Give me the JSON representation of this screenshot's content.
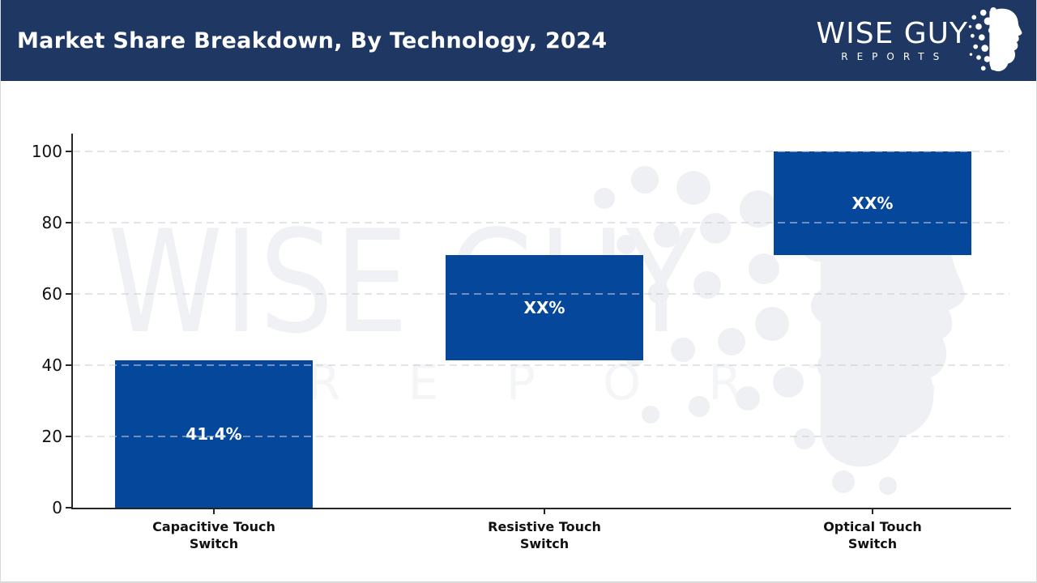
{
  "header": {
    "title": "Market Share Breakdown, By Technology, 2024",
    "logo": {
      "line1": "WISE GUY",
      "line2": "REPORTS"
    }
  },
  "watermark": {
    "line1": "WISE GUY",
    "line2": "R E P O R T S"
  },
  "colors": {
    "header_bg": "#1f3863",
    "bar": "#05489b",
    "bar_label": "#ffffff",
    "axis": "#262626",
    "tick_label": "#111111",
    "watermark": "#f0f1f4"
  },
  "chart_data": {
    "type": "bar",
    "subtype": "stacked-waterfall",
    "title": "Market Share Breakdown, By Technology, 2024",
    "categories": [
      "Capacitive Touch Switch",
      "Resistive Touch Switch",
      "Optical Touch Switch"
    ],
    "segments": [
      {
        "category": "Capacitive Touch Switch",
        "lines": [
          "Capacitive Touch",
          "Switch"
        ],
        "base": 0,
        "top": 41.4,
        "label": "41.4%"
      },
      {
        "category": "Resistive Touch Switch",
        "lines": [
          "Resistive Touch",
          "Switch"
        ],
        "base": 41.4,
        "top": 71,
        "label": "XX%"
      },
      {
        "category": "Optical Touch Switch",
        "lines": [
          "Optical Touch",
          "Switch"
        ],
        "base": 71,
        "top": 100,
        "label": "XX%"
      }
    ],
    "yticks": [
      0,
      20,
      40,
      60,
      80,
      100
    ],
    "ylim": [
      0,
      105
    ],
    "grid": "dashed horizontal, drawn over bars",
    "legend": "none",
    "xlabel": "",
    "ylabel": ""
  }
}
